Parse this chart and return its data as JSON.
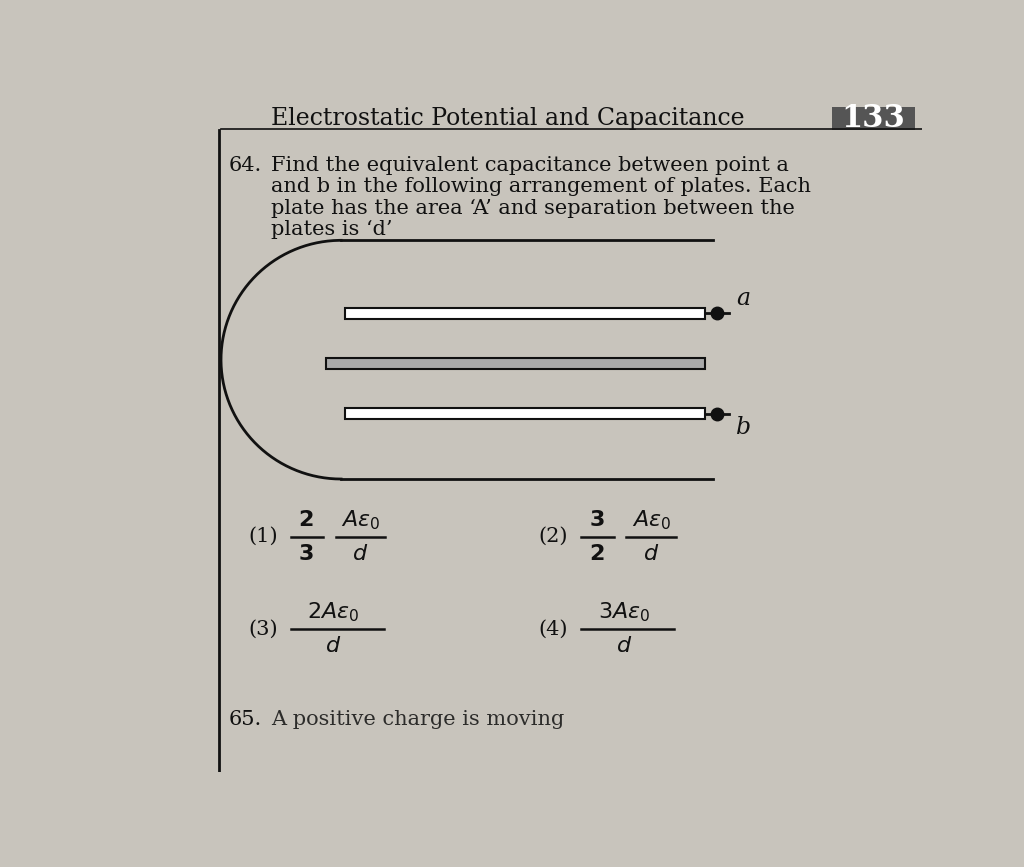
{
  "title": "Electrostatic Potential and Capacitance",
  "title_number": "133",
  "bg_color": "#c8c4bc",
  "question_number": "64.",
  "question_line1": "Find the equivalent capacitance between point a",
  "question_line2": "and b in the following arrangement of plates. Each",
  "question_line3": "plate has the area ‘A’ and separation between the",
  "question_line4": "plates is ‘d’",
  "font_color": "#111111",
  "plate_color": "#111111",
  "dot_color": "#111111",
  "opt1_num": "(1)",
  "opt2_num": "(2)",
  "opt3_num": "(3)",
  "opt4_num": "(4)"
}
